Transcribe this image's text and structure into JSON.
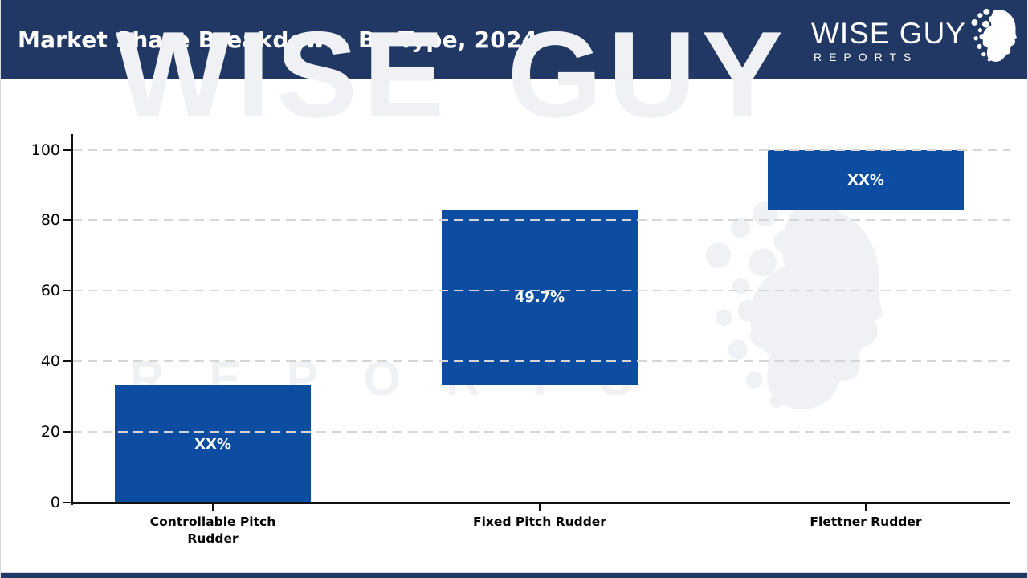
{
  "header": {
    "title": "Market Share Breakdown, By Type, 2024",
    "logo": {
      "wordmark": "WISE GUY",
      "subtext": "REPORTS"
    }
  },
  "watermark": {
    "wordmark": "WISE GUY",
    "subtext": "REPORTS"
  },
  "colors": {
    "header_bg": "#213864",
    "bar": "#0d4da1",
    "grid": "#d6d6d6",
    "axis": "#111111",
    "bar_label": "#ffffff",
    "watermark": "#f0f1f4"
  },
  "chart_data": {
    "type": "waterfall",
    "title": "Market Share Breakdown, By Type, 2024",
    "categories": [
      "Controllable Pitch Rudder",
      "Fixed Pitch Rudder",
      "Flettner Rudder"
    ],
    "segments": [
      {
        "category": "Controllable Pitch Rudder",
        "start": 0,
        "end": 33.2,
        "label": "XX%"
      },
      {
        "category": "Fixed Pitch Rudder",
        "start": 33.2,
        "end": 82.9,
        "label": "49.7%"
      },
      {
        "category": "Flettner Rudder",
        "start": 82.9,
        "end": 100,
        "label": "XX%"
      }
    ],
    "ylim": [
      0,
      100
    ],
    "yticks": [
      0,
      20,
      40,
      60,
      80,
      100
    ],
    "xlabel": "",
    "ylabel": "",
    "grid": "horizontal-dashed",
    "legend": "none"
  }
}
